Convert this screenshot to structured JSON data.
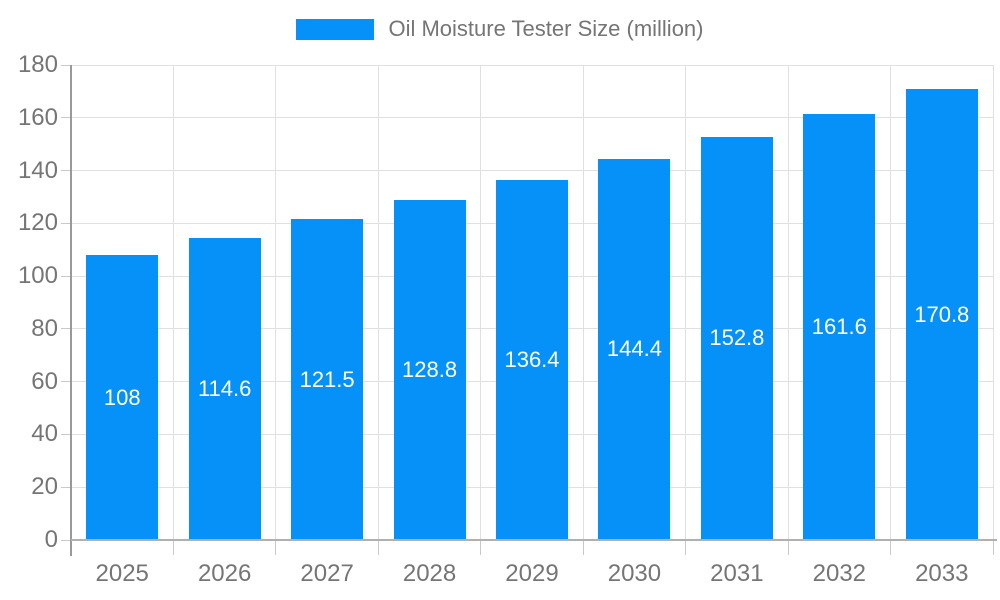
{
  "legend": {
    "label": "Oil Moisture Tester Size (million)"
  },
  "colors": {
    "bar": "#0691f8",
    "grid": "#e0e0e0",
    "y_axis": "#999999",
    "x_axis": "#b0b0b0",
    "tick": "#c9c9c9",
    "axis_label": "#757575",
    "value_label": "#ffffff",
    "background": "#ffffff"
  },
  "chart_data": {
    "type": "bar",
    "title": "Oil Moisture Tester Size (million)",
    "series_name": "Oil Moisture Tester Size (million)",
    "categories": [
      "2025",
      "2026",
      "2027",
      "2028",
      "2029",
      "2030",
      "2031",
      "2032",
      "2033"
    ],
    "values": [
      108,
      114.6,
      121.5,
      128.8,
      136.4,
      144.4,
      152.8,
      161.6,
      170.8
    ],
    "xlabel": "",
    "ylabel": "",
    "ylim": [
      0,
      180
    ],
    "ytick_step": 20,
    "ytick_labels": [
      "0",
      "20",
      "40",
      "60",
      "80",
      "100",
      "120",
      "140",
      "160",
      "180"
    ],
    "grid": true,
    "grid_vertical": true,
    "legend_position": "top-center",
    "value_labels_position": "inside-center"
  }
}
